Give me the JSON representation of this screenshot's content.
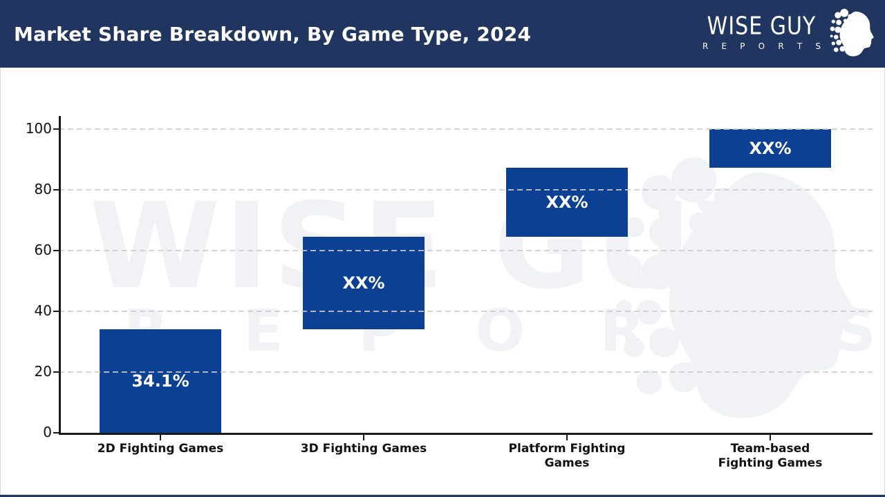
{
  "header": {
    "title": "Market Share Breakdown, By Game Type, 2024",
    "bg_color": "#203560",
    "text_color": "#ffffff",
    "logo": {
      "line1": "WISE GUY",
      "line2": "REPORTS"
    }
  },
  "watermark": {
    "line1": "WISE GUY",
    "line2": "REPORTS"
  },
  "chart_data": {
    "type": "bar",
    "subtype": "waterfall",
    "title": "Market Share Breakdown, By Game Type, 2024",
    "xlabel": "",
    "ylabel": "",
    "ylim": [
      0,
      100
    ],
    "yticks": [
      0,
      20,
      40,
      60,
      80,
      100
    ],
    "grid": "dashed horizontal gridlines",
    "legend": "none",
    "categories": [
      "2D Fighting Games",
      "3D Fighting Games",
      "Platform Fighting Games",
      "Team-based Fighting Games"
    ],
    "category_label_lines": [
      [
        "2D Fighting Games"
      ],
      [
        "3D Fighting Games"
      ],
      [
        "Platform Fighting",
        "Games"
      ],
      [
        "Team-based",
        "Fighting Games"
      ]
    ],
    "segments": [
      [
        0,
        34.1
      ],
      [
        34.1,
        64.5
      ],
      [
        64.5,
        87.3
      ],
      [
        87.3,
        100
      ]
    ],
    "values": [
      34.1,
      30.4,
      22.8,
      12.7
    ],
    "bar_labels": [
      "34.1%",
      "XX%",
      "XX%",
      "XX%"
    ],
    "bar_color": "#0b4093",
    "bar_label_color": "#ffffff",
    "axis_color": "#1a1a1a",
    "gridline_color": "#cdcdcd"
  }
}
